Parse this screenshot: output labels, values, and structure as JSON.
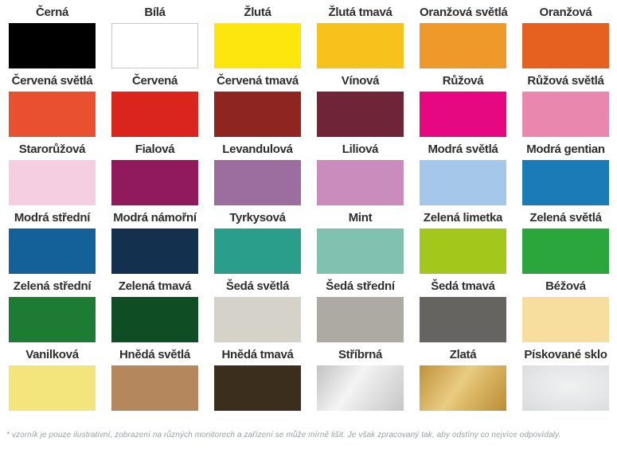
{
  "palette": {
    "columns": 6,
    "swatches": [
      {
        "label": "Černá",
        "color": "#000000"
      },
      {
        "label": "Bílá",
        "color": "#ffffff",
        "border": "#c9c9c9"
      },
      {
        "label": "Žlutá",
        "color": "#fce60d"
      },
      {
        "label": "Žlutá tmavá",
        "color": "#f8c21c"
      },
      {
        "label": "Oranžová světlá",
        "color": "#f0992b"
      },
      {
        "label": "Oranžová",
        "color": "#e6601f"
      },
      {
        "label": "Červená světlá",
        "color": "#e8502f"
      },
      {
        "label": "Červená",
        "color": "#d9251d"
      },
      {
        "label": "Červená tmavá",
        "color": "#8e2520"
      },
      {
        "label": "Vínová",
        "color": "#6f2438"
      },
      {
        "label": "Růžová",
        "color": "#e50880"
      },
      {
        "label": "Růžová světlá",
        "color": "#ea87ae"
      },
      {
        "label": "Starorůžová",
        "color": "#f6cee2"
      },
      {
        "label": "Fialová",
        "color": "#911a5d"
      },
      {
        "label": "Levandulová",
        "color": "#9c6d9f"
      },
      {
        "label": "Liliová",
        "color": "#ca8cbc"
      },
      {
        "label": "Modrá světlá",
        "color": "#a5c8ea"
      },
      {
        "label": "Modrá gentian",
        "color": "#1b7bb6"
      },
      {
        "label": "Modrá střední",
        "color": "#14619a"
      },
      {
        "label": "Modrá námořní",
        "color": "#13304f"
      },
      {
        "label": "Tyrkysová",
        "color": "#2b9e8b"
      },
      {
        "label": "Mint",
        "color": "#81c1af"
      },
      {
        "label": "Zelená limetka",
        "color": "#a4c71b"
      },
      {
        "label": "Zelená světlá",
        "color": "#2ba63c"
      },
      {
        "label": "Zelená střední",
        "color": "#1e7b34"
      },
      {
        "label": "Zelená tmavá",
        "color": "#0f4e25"
      },
      {
        "label": "Šedá světlá",
        "color": "#d5d2c9"
      },
      {
        "label": "Šedá střední",
        "color": "#acaaa3"
      },
      {
        "label": "Šedá tmavá",
        "color": "#656461"
      },
      {
        "label": "Béžová",
        "color": "#f7de9e"
      },
      {
        "label": "Vanilková",
        "color": "#f4e47c"
      },
      {
        "label": "Hnědá světlá",
        "color": "#b4885c"
      },
      {
        "label": "Hnědá tmavá",
        "color": "#3c2e1d"
      },
      {
        "label": "Stříbrná",
        "gradient": "linear-gradient(125deg, #c2c2c2 0%, #f4f4f4 42%, #e9e9e9 55%, #c6c6c6 100%)"
      },
      {
        "label": "Zlatá",
        "gradient": "linear-gradient(125deg, #bf923a 0%, #e9cc82 45%, #dcb967 60%, #ba8d35 100%)"
      },
      {
        "label": "Pískované sklo",
        "gradient": "radial-gradient(ellipse at 55% 45%, #f0f1f1 0%, #e4e6e7 55%, #d8dbdc 100%)"
      }
    ],
    "footnote": "* vzorník je pouze ilustrativní, zobrazení na různých monitorech a zařízení se může mírně lišit. Je však zpracovaný tak, aby odstíny co nejvíce odpovídaly."
  }
}
